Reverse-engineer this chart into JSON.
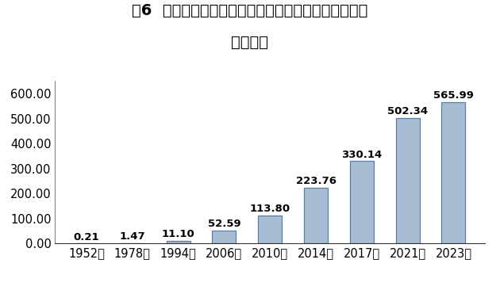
{
  "title_line1": "图6  新中国成立以来主要年份保山社会消费品零售总额",
  "title_line2": "（亿元）",
  "categories": [
    "1952年",
    "1978年",
    "1994年",
    "2006年",
    "2010年",
    "2014年",
    "2017年",
    "2021年",
    "2023年"
  ],
  "values": [
    0.21,
    1.47,
    11.1,
    52.59,
    113.8,
    223.76,
    330.14,
    502.34,
    565.99
  ],
  "bar_color": "#A8BDD4",
  "bar_edge_color": "#5B7FA6",
  "background_color": "#ffffff",
  "ylim": [
    0,
    650
  ],
  "yticks": [
    0,
    100.0,
    200.0,
    300.0,
    400.0,
    500.0,
    600.0
  ],
  "ytick_labels": [
    "0.00",
    "100.00",
    "200.00",
    "300.00",
    "400.00",
    "500.00",
    "600.00"
  ],
  "title_fontsize": 14,
  "tick_fontsize": 10.5,
  "label_fontsize": 9.5,
  "bar_width": 0.52
}
